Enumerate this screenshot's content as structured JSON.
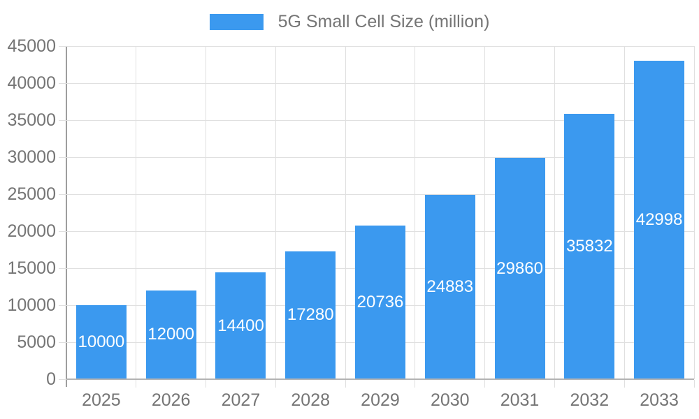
{
  "chart_data": {
    "type": "bar",
    "title": "5G Small Cell Size (million)",
    "categories": [
      "2025",
      "2026",
      "2027",
      "2028",
      "2029",
      "2030",
      "2031",
      "2032",
      "2033"
    ],
    "series": [
      {
        "name": "5G Small Cell Size (million)",
        "values": [
          10000,
          12000,
          14400,
          17280,
          20736,
          24883,
          29860,
          35832,
          42998
        ]
      }
    ],
    "xlabel": "",
    "ylabel": "",
    "ylim": [
      0,
      45000
    ],
    "yticks": [
      0,
      5000,
      10000,
      15000,
      20000,
      25000,
      30000,
      35000,
      40000,
      45000
    ],
    "grid": true,
    "legend_position": "top-center",
    "bar_label_position": "inside-center"
  },
  "legend": {
    "label": "5G Small Cell Size (million)"
  },
  "colors": {
    "bar": "#3b99ef",
    "grid": "#e0e0e0",
    "axis_line": "#9e9e9e",
    "baseline": "#b3b3b3",
    "axis_text": "#757575",
    "value_label_text": "#ffffff",
    "background": "#ffffff"
  }
}
